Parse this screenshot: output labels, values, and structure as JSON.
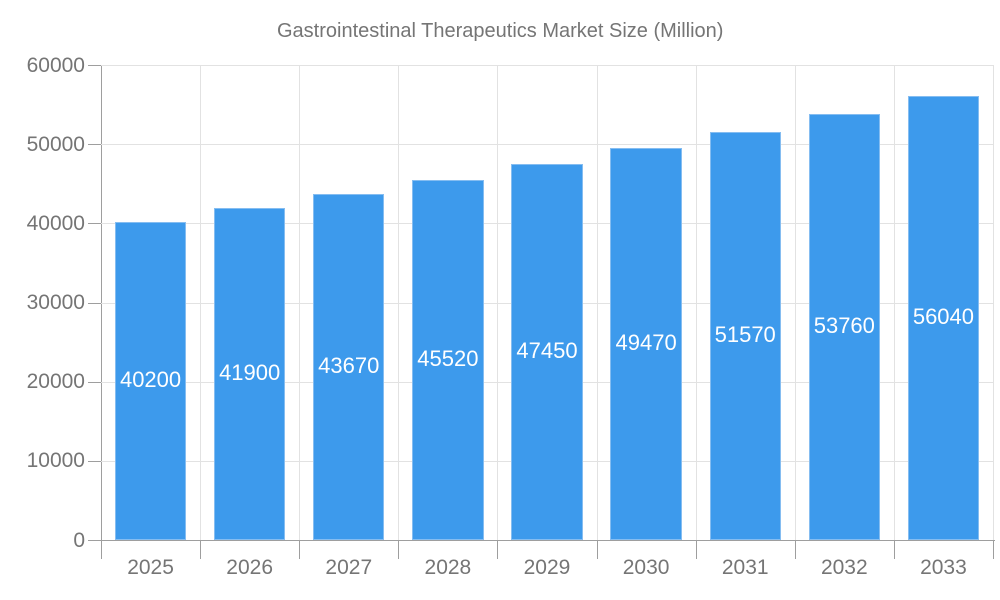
{
  "chart_data": {
    "type": "bar",
    "title": "Gastrointestinal Therapeutics Market Size (Million)",
    "categories": [
      "2025",
      "2026",
      "2027",
      "2028",
      "2029",
      "2030",
      "2031",
      "2032",
      "2033"
    ],
    "values": [
      40200,
      41900,
      43670,
      45520,
      47450,
      49470,
      51570,
      53760,
      56040
    ],
    "xlabel": "",
    "ylabel": "",
    "ylim": [
      0,
      60000
    ],
    "y_ticks": [
      0,
      10000,
      20000,
      30000,
      40000,
      50000,
      60000
    ],
    "grid": true,
    "legend_position": "top",
    "colors": {
      "bar_fill": "#3d9aec",
      "bar_border": "#85bdf1",
      "grid_line": "#e2e2e2",
      "axis_line": "#9e9e9e",
      "tick_text": "#757575",
      "bar_label_text": "#ffffff"
    }
  }
}
